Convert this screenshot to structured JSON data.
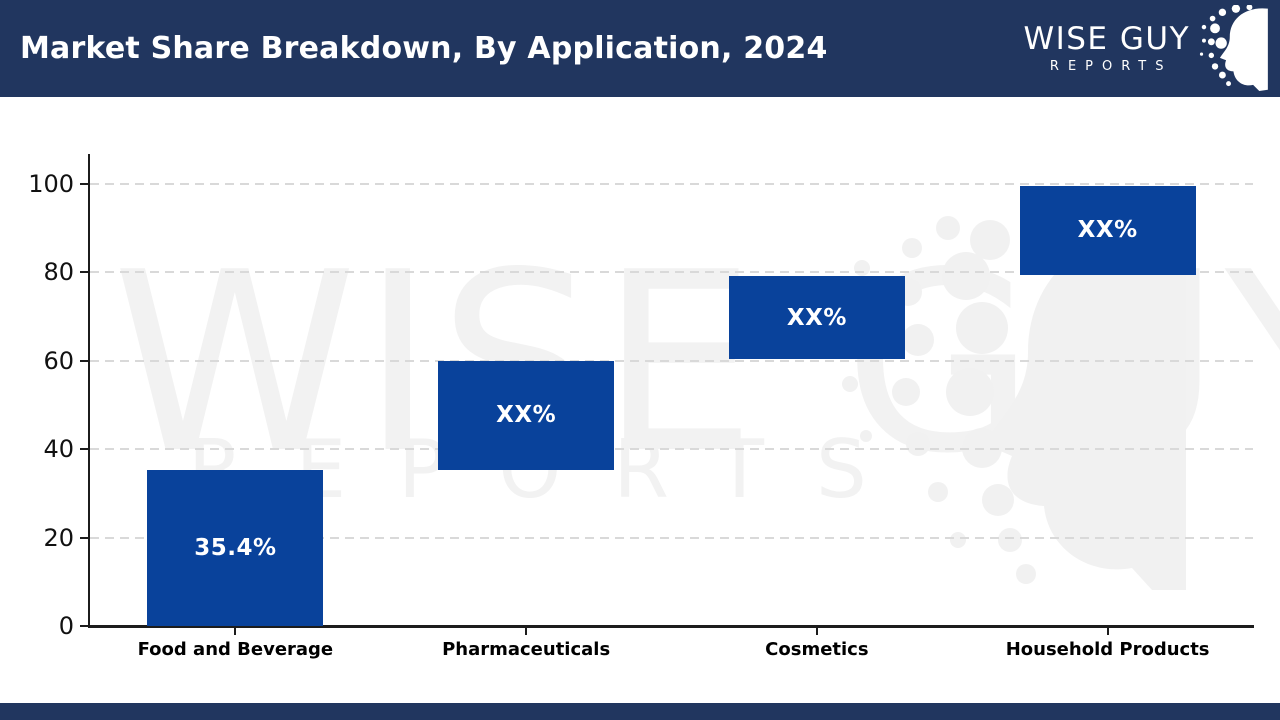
{
  "header": {
    "title": "Market Share Breakdown, By Application, 2024",
    "logo": {
      "line1": "WISE GUY",
      "line2": "REPORTS"
    }
  },
  "watermark": {
    "line1": "WISE GUY",
    "line2": "REPORTS"
  },
  "colors": {
    "header_bg": "#21365f",
    "footer_bg": "#21365f",
    "bar": "#09429b",
    "bar_label": "#ffffff",
    "grid": "#d9d9d9",
    "axis": "#1c1c1c",
    "watermark": "#f2f2f2",
    "title_text": "#ffffff"
  },
  "chart_data": {
    "type": "bar",
    "subtype": "waterfall",
    "title": "Market Share Breakdown, By Application, 2024",
    "categories": [
      "Food and Beverage",
      "Pharmaceuticals",
      "Cosmetics",
      "Household Products"
    ],
    "segments": [
      {
        "category": "Food and Beverage",
        "from": 0,
        "to": 35.4,
        "label": "35.4%"
      },
      {
        "category": "Pharmaceuticals",
        "from": 35.4,
        "to": 60,
        "label": "XX%"
      },
      {
        "category": "Cosmetics",
        "from": 60.3,
        "to": 79.1,
        "label": "XX%"
      },
      {
        "category": "Household Products",
        "from": 79.5,
        "to": 99.6,
        "label": "XX%"
      }
    ],
    "xlabel": "",
    "ylabel": "",
    "ylim": [
      0,
      106.6
    ],
    "yticks": [
      0,
      20,
      40,
      60,
      80,
      100
    ],
    "grid": "horizontal-dashed",
    "legend": "none",
    "bar_labels_inside": true
  }
}
